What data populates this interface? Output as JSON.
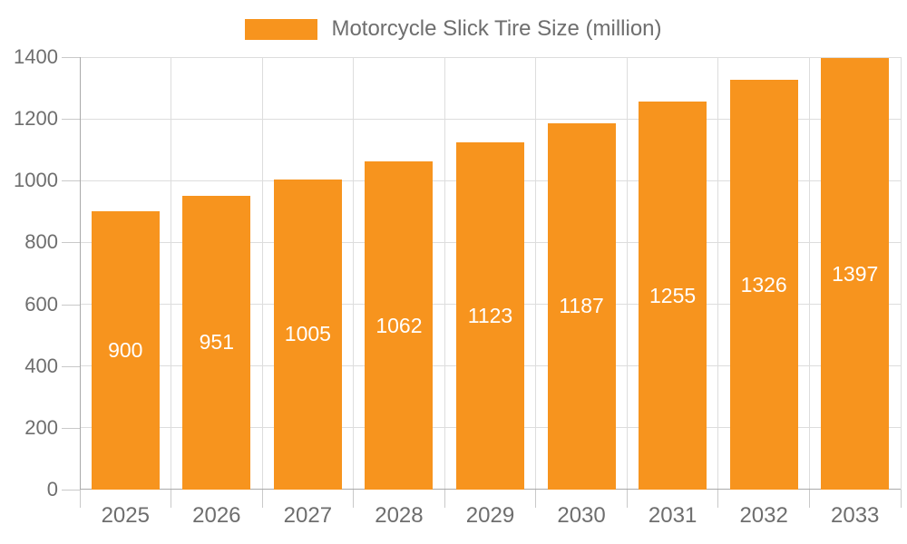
{
  "chart_data": {
    "type": "bar",
    "title": "Motorcycle Slick Tire Size (million)",
    "legend_label": "Motorcycle Slick Tire Size (million)",
    "legend_position": "top-center",
    "categories": [
      "2025",
      "2026",
      "2027",
      "2028",
      "2029",
      "2030",
      "2031",
      "2032",
      "2033"
    ],
    "series": [
      {
        "name": "Motorcycle Slick Tire Size (million)",
        "values": [
          900,
          951,
          1005,
          1062,
          1123,
          1187,
          1255,
          1326,
          1397
        ]
      }
    ],
    "bar_value_labels": [
      "900",
      "951",
      "1005",
      "1062",
      "1123",
      "1187",
      "1255",
      "1326",
      "1397"
    ],
    "bar_labels_position": "inside-center",
    "xlabel": "",
    "ylabel": "",
    "ylim": [
      0,
      1400
    ],
    "yticks": [
      0,
      200,
      400,
      600,
      800,
      1000,
      1200,
      1400
    ],
    "grid": "on"
  },
  "colors": {
    "bar": "#F7941E",
    "grid": "#DDDDDD",
    "axis": "#AAAAAA",
    "tick": "#C9C9C9",
    "text": "#6E6E6E",
    "bar_label": "#FFFFFF",
    "background": "#FFFFFF"
  }
}
